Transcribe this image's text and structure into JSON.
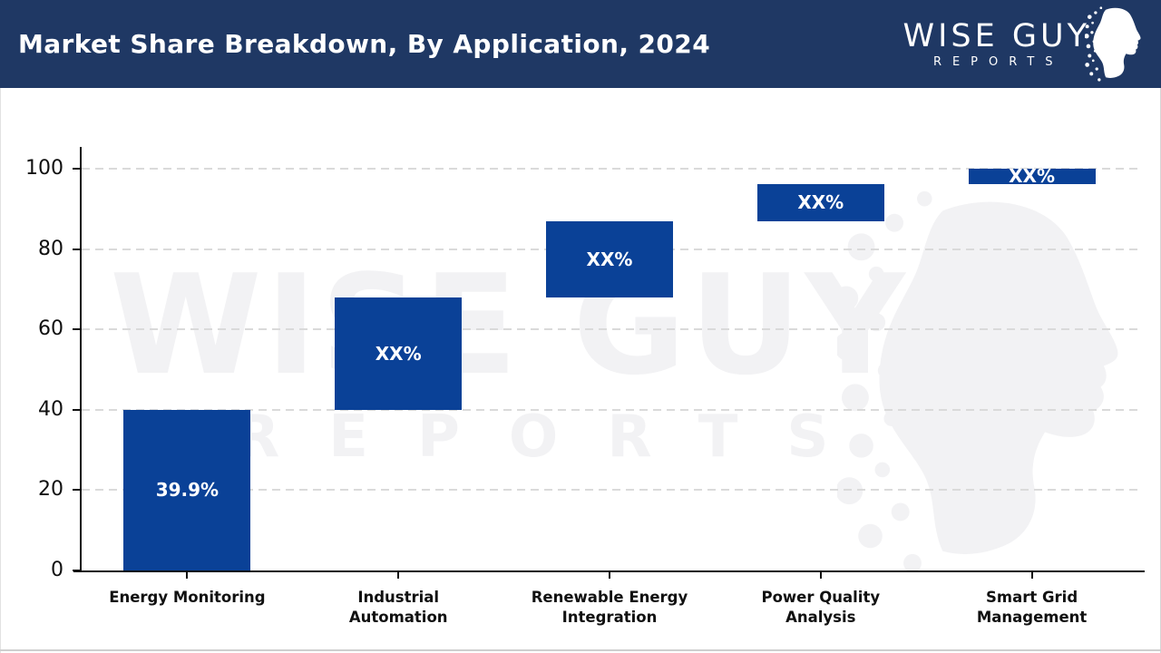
{
  "header": {
    "title": "Market Share Breakdown, By Application, 2024",
    "brand_line1": "WISE GUY",
    "brand_line2": "REPORTS",
    "bg_color": "#1f3864"
  },
  "watermark": {
    "line1": "WISE GUY",
    "line2": "REPORTS"
  },
  "icons": {
    "brand_head": "dotted-face-profile-icon"
  },
  "chart_data": {
    "type": "bar",
    "subtype": "waterfall",
    "title": "Market Share Breakdown, By Application, 2024",
    "categories": [
      "Energy Monitoring",
      "Industrial Automation",
      "Renewable Energy Integration",
      "Power Quality Analysis",
      "Smart Grid Management"
    ],
    "category_lines": [
      [
        "Energy Monitoring"
      ],
      [
        "Industrial",
        "Automation"
      ],
      [
        "Renewable Energy",
        "Integration"
      ],
      [
        "Power Quality",
        "Analysis"
      ],
      [
        "Smart Grid",
        "Management"
      ]
    ],
    "bars": [
      {
        "category": "Energy Monitoring",
        "label": "39.9%",
        "start": 0,
        "end": 40
      },
      {
        "category": "Industrial Automation",
        "label": "XX%",
        "start": 40,
        "end": 68
      },
      {
        "category": "Renewable Energy Integration",
        "label": "XX%",
        "start": 68,
        "end": 87
      },
      {
        "category": "Power Quality Analysis",
        "label": "XX%",
        "start": 87,
        "end": 96.3
      },
      {
        "category": "Smart Grid Management",
        "label": "XX%",
        "start": 96.3,
        "end": 100
      }
    ],
    "y_ticks": [
      0,
      20,
      40,
      60,
      80,
      100
    ],
    "ylim": [
      0,
      105
    ],
    "xlabel": "",
    "ylabel": "",
    "legend": "none",
    "grid": "dashed-horizontal",
    "bar_color": "#0a4197",
    "bar_label_color": "#ffffff",
    "axis_color": "#0f0f0f",
    "grid_color": "#dadada",
    "watermark_color": "#f2f2f4"
  }
}
